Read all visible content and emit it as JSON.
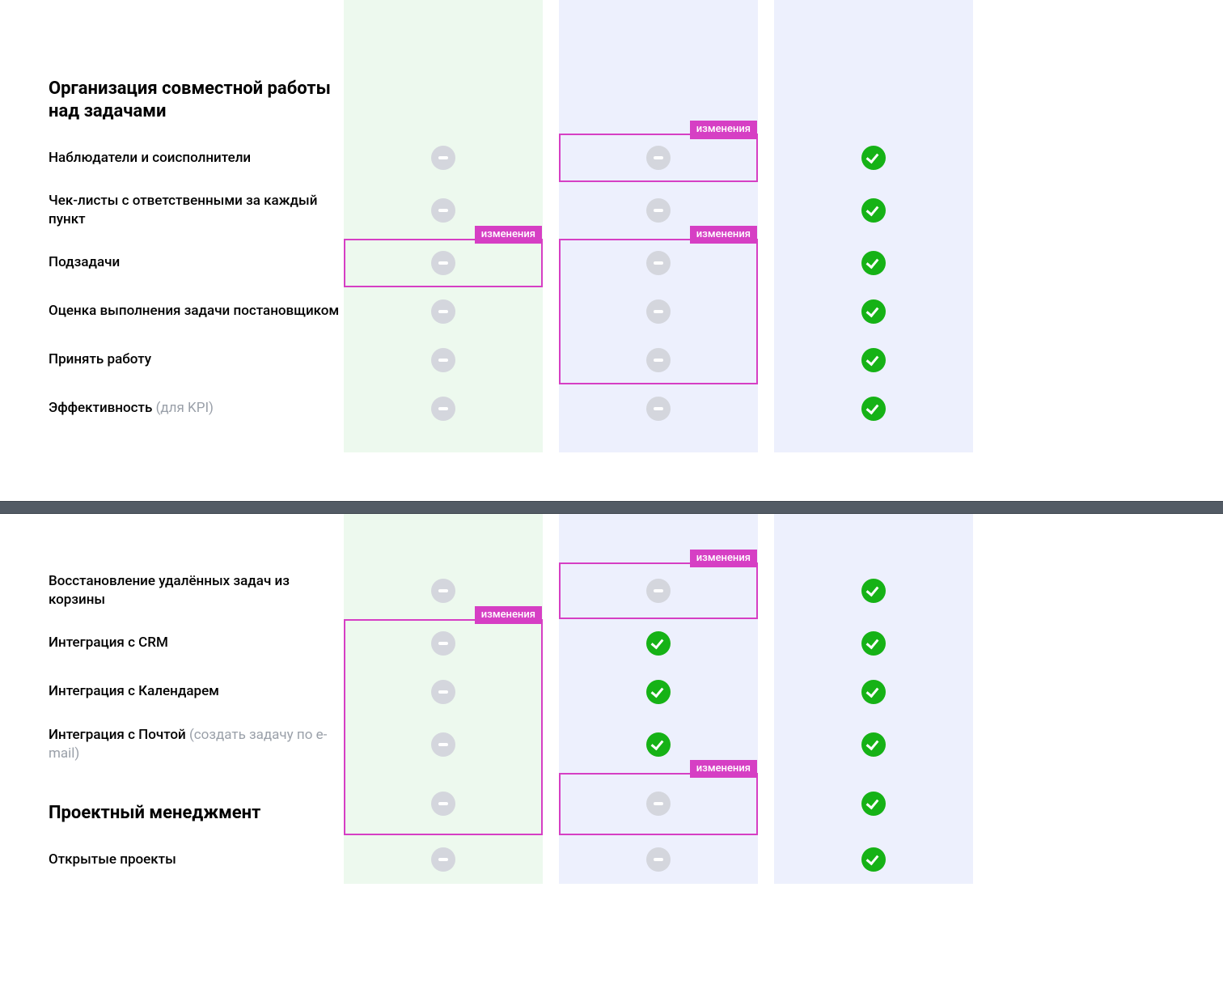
{
  "colors": {
    "plan1_bg": "#edf9ee",
    "plan2_bg": "#edf0fd",
    "plan3_bg": "#edf0fd",
    "minus_bg": "#d4d6dd",
    "check_bg": "#16b216",
    "highlight_border": "#d63fc4",
    "highlight_badge_bg": "#d63fc4",
    "text_primary": "#000000",
    "text_muted": "#9aa0a9",
    "divider_bg": "#535b65"
  },
  "badge_label": "изменения",
  "section1": {
    "heading": "Организация совместной работы над задачами",
    "rows": [
      {
        "label": "Наблюдатели и соисполнители",
        "values": [
          "minus",
          "minus",
          "check"
        ],
        "highlights": [
          null,
          {
            "badge": true,
            "open_bottom": false
          },
          null
        ]
      },
      {
        "label": "Чек-листы с ответственными за каждый пункт",
        "values": [
          "minus",
          "minus",
          "check"
        ],
        "highlights": [
          null,
          null,
          null
        ]
      },
      {
        "label": "Подзадачи",
        "values": [
          "minus",
          "minus",
          "check"
        ],
        "highlights": [
          {
            "badge": true
          },
          {
            "badge": true,
            "open_bottom": true
          },
          null
        ]
      },
      {
        "label": "Оценка выполнения задачи постановщиком",
        "values": [
          "minus",
          "minus",
          "check"
        ],
        "highlights": [
          null,
          {
            "badge": false,
            "open_top": true,
            "open_bottom": true
          },
          null
        ]
      },
      {
        "label": "Принять работу",
        "values": [
          "minus",
          "minus",
          "check"
        ],
        "highlights": [
          null,
          {
            "badge": false,
            "open_top": true
          },
          null
        ]
      },
      {
        "label": "Эффективность",
        "sublabel": "(для KPI)",
        "values": [
          "minus",
          "minus",
          "check"
        ],
        "highlights": [
          null,
          null,
          null
        ]
      }
    ]
  },
  "section2": {
    "rows": [
      {
        "label": "Восстановление удалённых задач из корзины",
        "values": [
          "minus",
          "minus",
          "check"
        ],
        "highlights": [
          null,
          {
            "badge": true
          },
          null
        ]
      },
      {
        "label": "Интеграция с CRM",
        "values": [
          "minus",
          "check",
          "check"
        ],
        "highlights": [
          {
            "badge": true,
            "open_bottom": true
          },
          null,
          null
        ]
      },
      {
        "label": "Интеграция с Календарем",
        "values": [
          "minus",
          "check",
          "check"
        ],
        "highlights": [
          {
            "badge": false,
            "open_top": true,
            "open_bottom": true
          },
          null,
          null
        ]
      },
      {
        "label": "Интеграция с Почтой",
        "sublabel": "(создать задачу по e-mail)",
        "values": [
          "minus",
          "check",
          "check"
        ],
        "highlights": [
          {
            "badge": false,
            "open_top": true,
            "open_bottom": true
          },
          null,
          null
        ]
      },
      {
        "heading": "Проектный менеджмент",
        "values": [
          "minus",
          "minus",
          "check"
        ],
        "highlights": [
          {
            "badge": false,
            "open_top": true
          },
          {
            "badge": true
          },
          null
        ]
      },
      {
        "label": "Открытые проекты",
        "values": [
          "minus",
          "minus",
          "check"
        ],
        "highlights": [
          null,
          null,
          null
        ]
      }
    ]
  }
}
